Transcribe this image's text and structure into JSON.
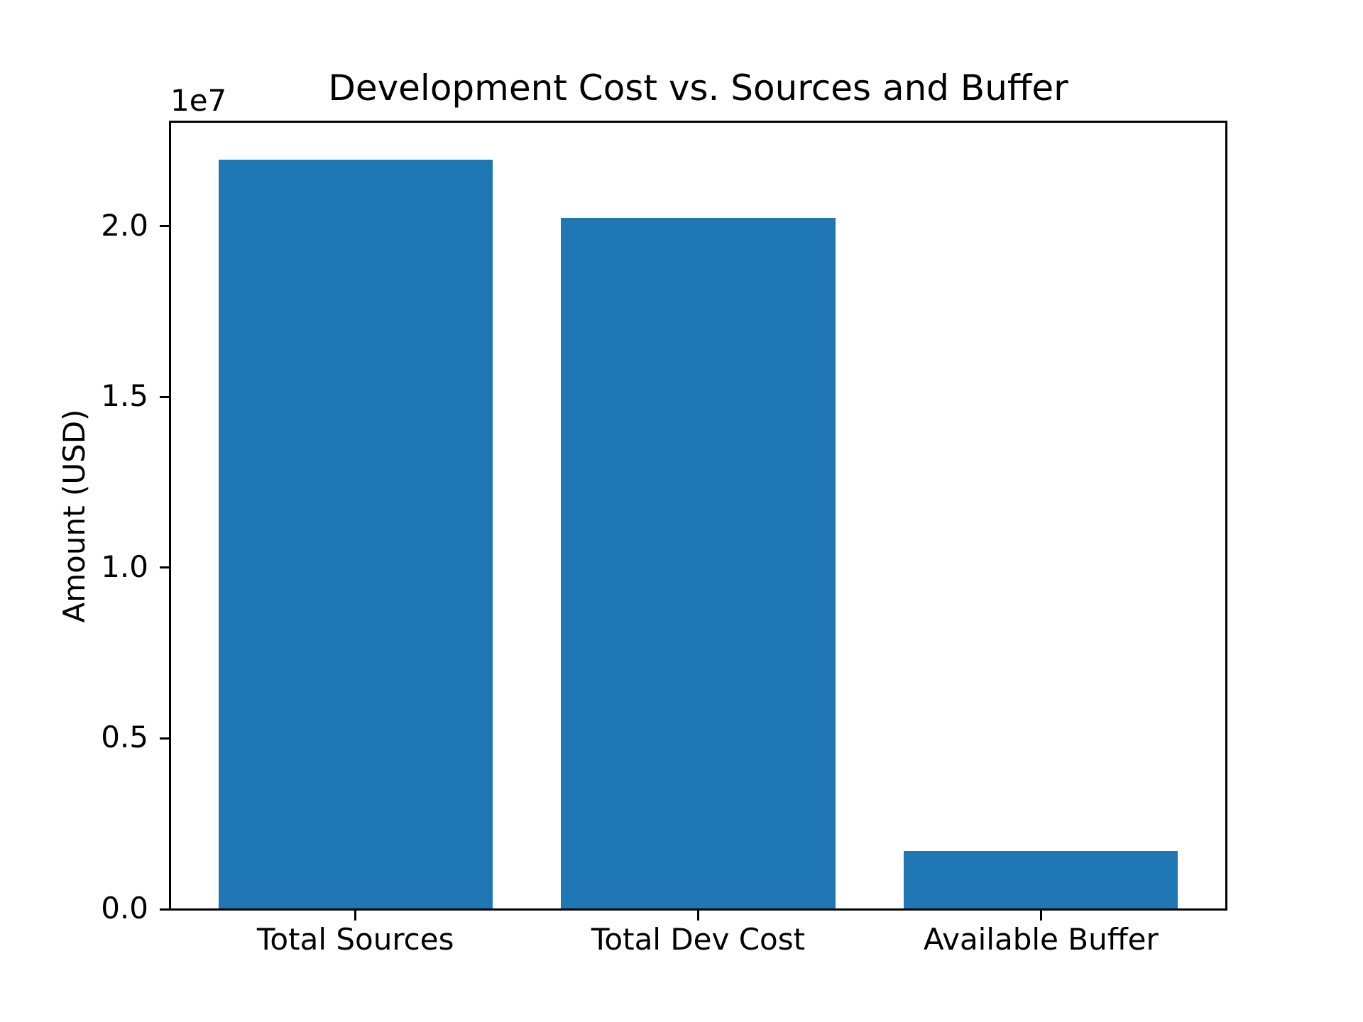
{
  "chart_data": {
    "type": "bar",
    "title": "Development Cost vs. Sources and Buffer",
    "xlabel": "",
    "ylabel": "Amount (USD)",
    "y_offset_text": "1e7",
    "categories": [
      "Total Sources",
      "Total Dev Cost",
      "Available Buffer"
    ],
    "values": [
      21950000,
      20250000,
      1700000
    ],
    "bar_color": "#1f77b4",
    "ylim": [
      0,
      23047500
    ],
    "yticks": [
      0,
      5000000,
      10000000,
      15000000,
      20000000
    ],
    "ytick_labels": [
      "0.0",
      "0.5",
      "1.0",
      "1.5",
      "2.0"
    ],
    "bar_width_fraction": 0.8,
    "grid": false,
    "legend_position": "none",
    "text_color": "#000000",
    "background_color": "#ffffff"
  }
}
